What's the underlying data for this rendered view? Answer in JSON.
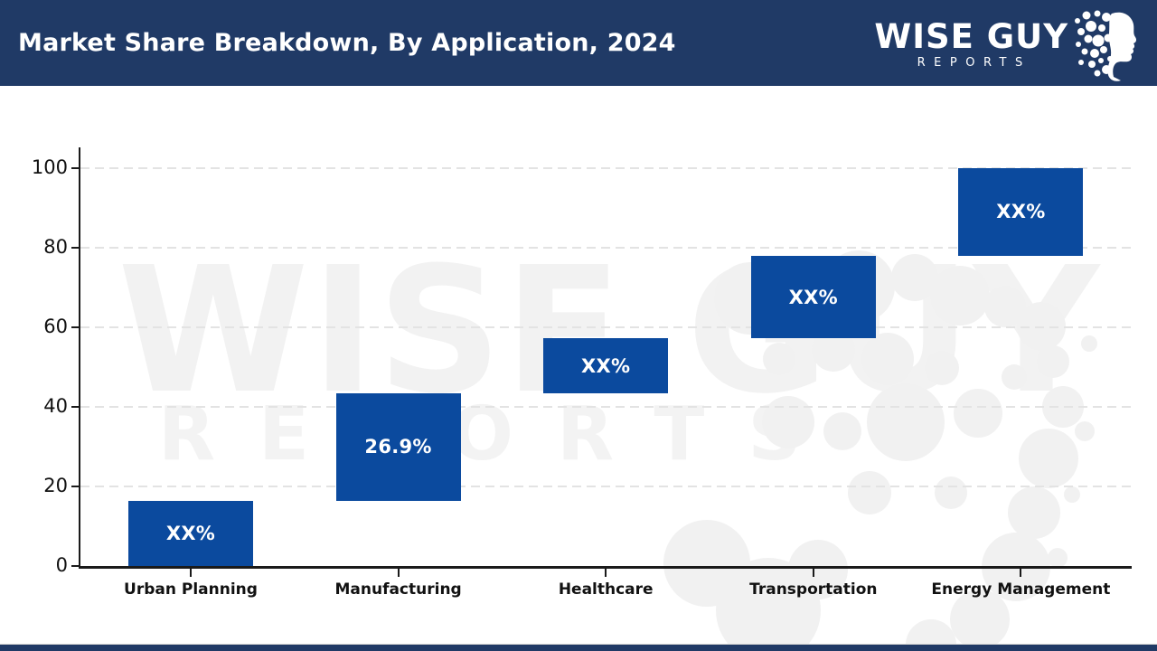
{
  "header": {
    "title": "Market Share Breakdown, By Application, 2024",
    "logo": {
      "line1": "WISE GUY",
      "line2": "REPORTS"
    }
  },
  "watermark": {
    "line1": "WISE GUY",
    "line2": "REPORTS"
  },
  "colors": {
    "header_bg": "#203a66",
    "footer_bg": "#203a66",
    "bar_fill": "#0b4a9e",
    "bar_label": "#ffffff",
    "grid": "#e3e3e3",
    "axis": "#1a1a1a",
    "tick_label": "#111111",
    "watermark": "#f2f2f2"
  },
  "chart_data": {
    "type": "bar",
    "subtype": "floating-waterfall",
    "title": "Market Share Breakdown, By Application, 2024",
    "categories": [
      "Urban Planning",
      "Manufacturing",
      "Healthcare",
      "Transportation",
      "Energy Management"
    ],
    "segments": [
      {
        "category": "Urban Planning",
        "start": 0,
        "end": 16.4,
        "label": "XX%"
      },
      {
        "category": "Manufacturing",
        "start": 16.4,
        "end": 43.3,
        "label": "26.9%",
        "value": 26.9
      },
      {
        "category": "Healthcare",
        "start": 43.3,
        "end": 57.1,
        "label": "XX%"
      },
      {
        "category": "Transportation",
        "start": 57.1,
        "end": 77.9,
        "label": "XX%"
      },
      {
        "category": "Energy Management",
        "start": 77.9,
        "end": 100,
        "label": "XX%"
      }
    ],
    "xlabel": "",
    "ylabel": "",
    "yticks": [
      0,
      20,
      40,
      60,
      80,
      100
    ],
    "ylim": [
      0,
      105
    ],
    "grid": {
      "horizontal": true,
      "style": "dashed"
    },
    "legend": "none",
    "bar_color": "#0b4a9e",
    "bar_label_color": "#ffffff"
  }
}
